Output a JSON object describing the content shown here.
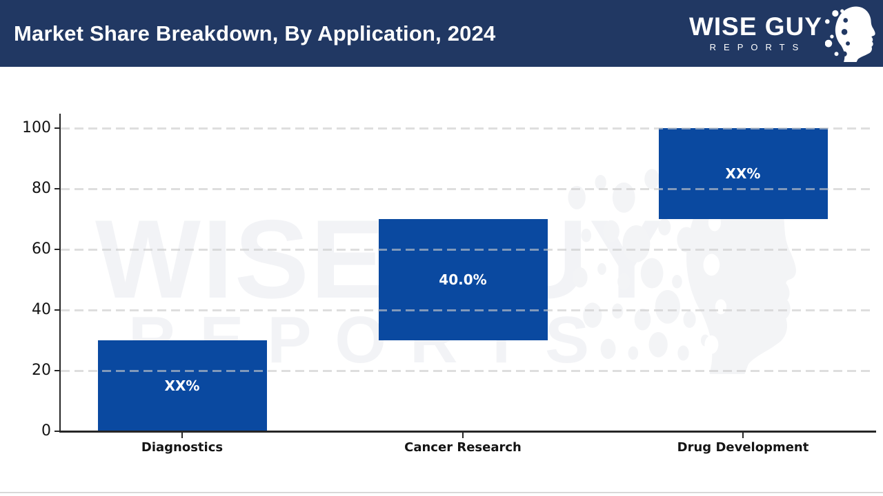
{
  "header": {
    "title": "Market Share Breakdown, By Application, 2024",
    "logo": {
      "line1": "WISE GUY",
      "line2": "REPORTS"
    }
  },
  "watermark": {
    "line1": "WISE GUY",
    "line2": "REPORTS"
  },
  "chart_data": {
    "type": "bar",
    "subtype": "floating-segment-bars",
    "title": "Market Share Breakdown, By Application, 2024",
    "categories": [
      "Diagnostics",
      "Cancer Research",
      "Drug Development"
    ],
    "segments": [
      {
        "category": "Diagnostics",
        "start": 0,
        "end": 30,
        "label": "XX%"
      },
      {
        "category": "Cancer Research",
        "start": 30,
        "end": 70,
        "label": "40.0%"
      },
      {
        "category": "Drug Development",
        "start": 70,
        "end": 100,
        "label": "XX%"
      }
    ],
    "yticks": [
      0,
      20,
      40,
      60,
      80,
      100
    ],
    "ylim": [
      0,
      104
    ],
    "xlabel": "",
    "ylabel": "",
    "grid": "horizontal-dashed",
    "legend": "none"
  },
  "colors": {
    "header_bg": "#213863",
    "header_text": "#ffffff",
    "bar": "#0a49a0",
    "bar_value_text": "#ffffff",
    "axis": "#262626",
    "tick_label": "#141414",
    "gridline": "#cacaca",
    "watermark": "#f2f3f6",
    "background": "#ffffff"
  }
}
